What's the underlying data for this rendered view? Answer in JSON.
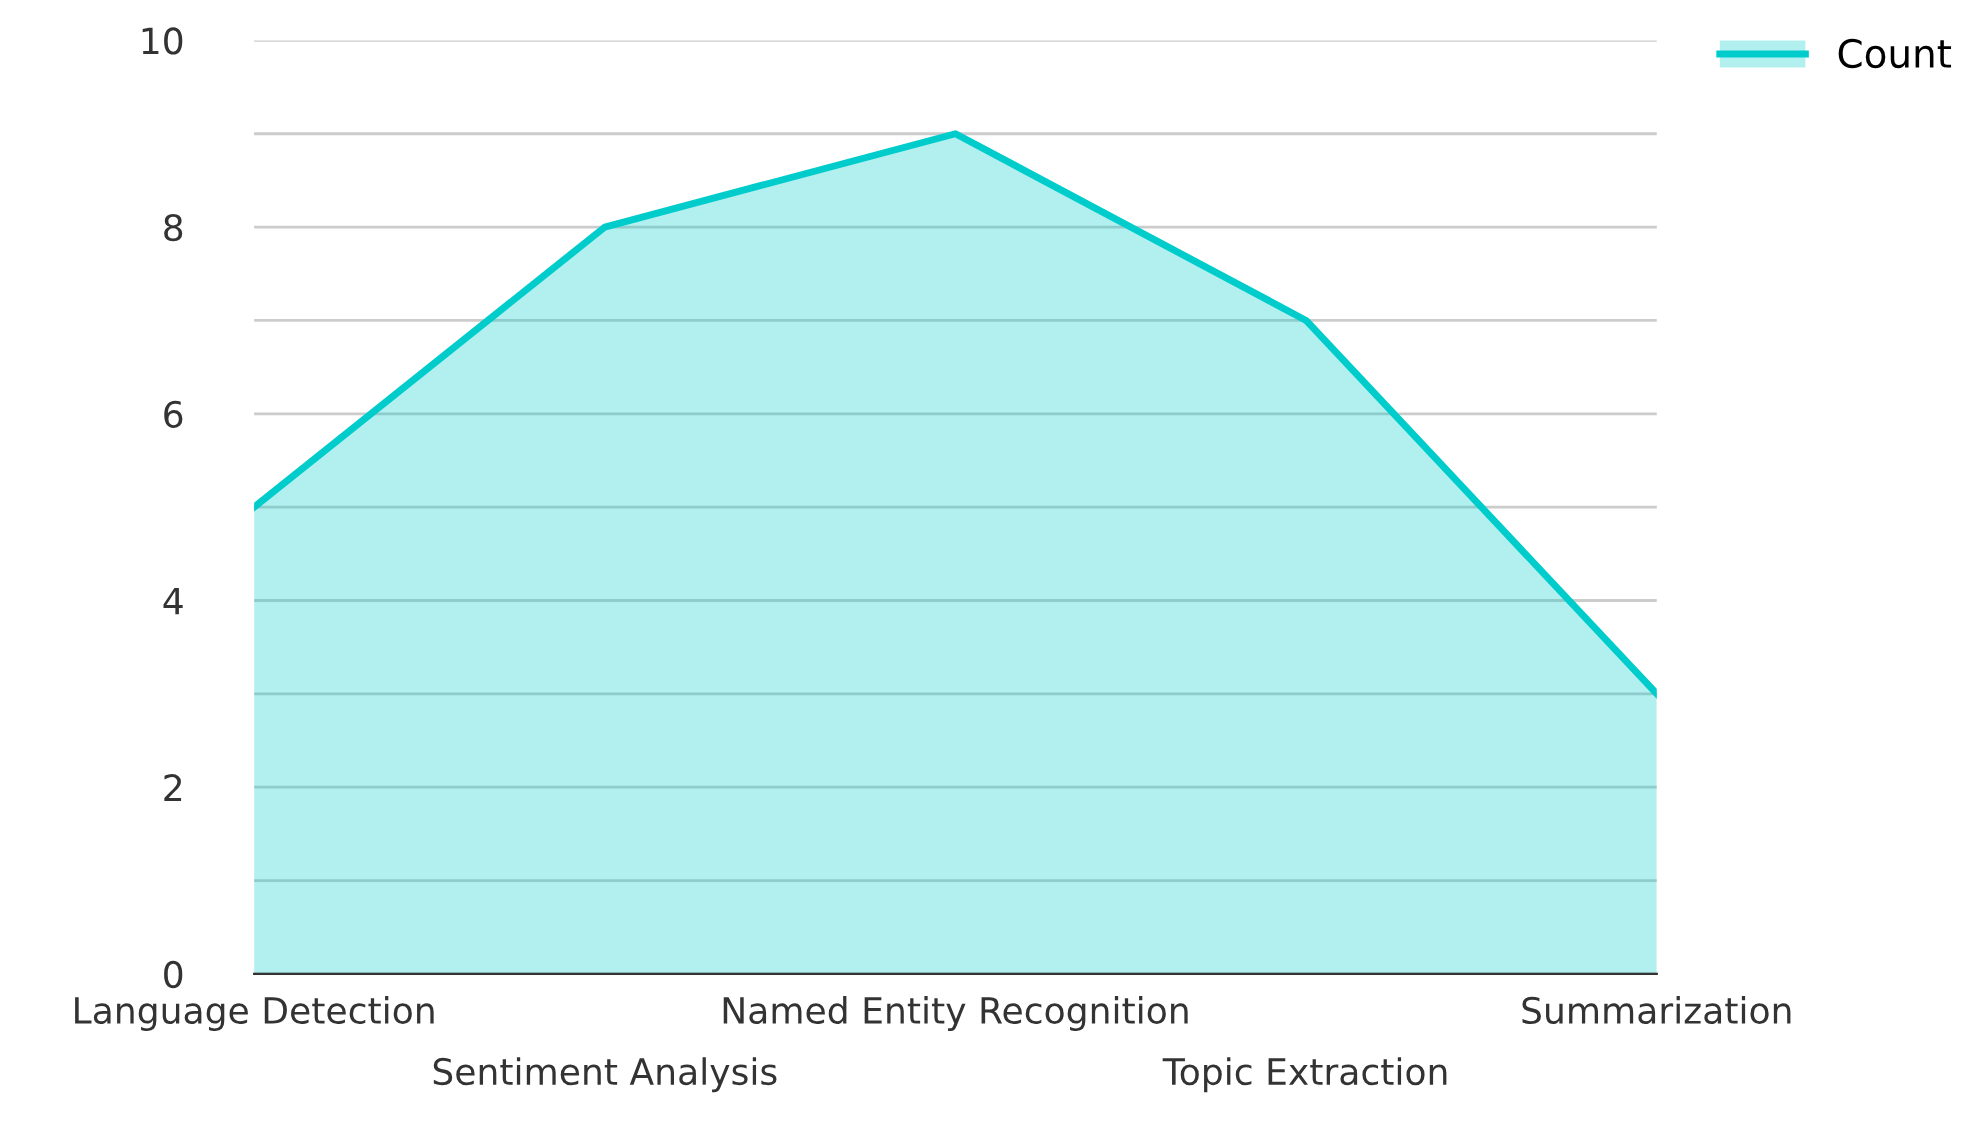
{
  "chart_data": {
    "type": "area",
    "categories": [
      "Language Detection",
      "Sentiment Analysis",
      "Named Entity Recognition",
      "Topic Extraction",
      "Summarization"
    ],
    "series": [
      {
        "name": "Count",
        "color": "#00cccc",
        "values": [
          5,
          8,
          9,
          7,
          3
        ]
      }
    ],
    "ylim": [
      0,
      10
    ],
    "yticks": [
      0,
      {
        "value": 1,
        "label": null
      },
      2,
      {
        "value": 3,
        "label": null
      },
      4,
      {
        "value": 5,
        "label": null
      },
      6,
      {
        "value": 7,
        "label": null
      },
      8,
      {
        "value": 9,
        "label": null
      },
      10
    ],
    "grid": "y",
    "legend": "top right"
  }
}
